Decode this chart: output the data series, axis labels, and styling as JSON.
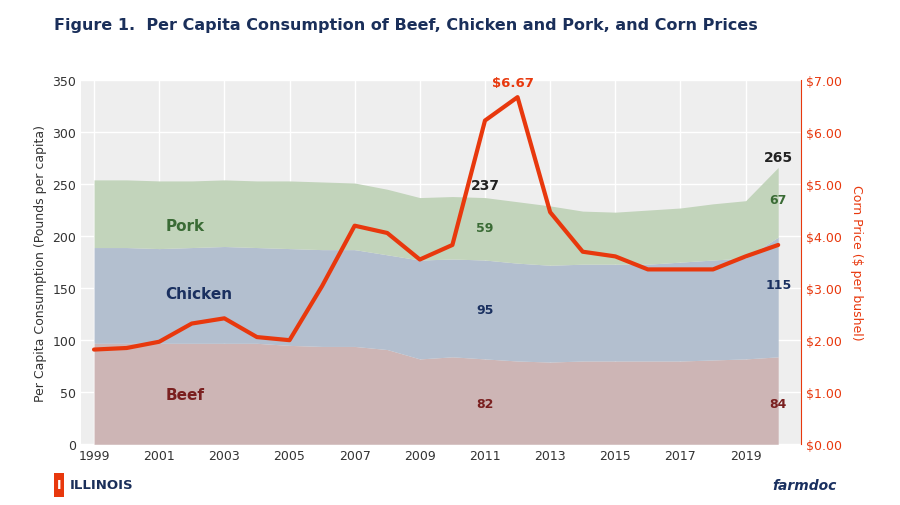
{
  "title": "Figure 1.  Per Capita Consumption of Beef, Chicken and Pork, and Corn Prices",
  "years": [
    1999,
    2000,
    2001,
    2002,
    2003,
    2004,
    2005,
    2006,
    2007,
    2008,
    2009,
    2010,
    2011,
    2012,
    2013,
    2014,
    2015,
    2016,
    2017,
    2018,
    2019,
    2020
  ],
  "beef": [
    97,
    97,
    97,
    97,
    97,
    97,
    95,
    94,
    94,
    91,
    82,
    84,
    82,
    80,
    79,
    80,
    80,
    80,
    80,
    81,
    82,
    84
  ],
  "chicken": [
    92,
    92,
    91,
    92,
    93,
    92,
    93,
    93,
    93,
    91,
    95,
    94,
    95,
    94,
    93,
    93,
    93,
    93,
    95,
    96,
    97,
    115
  ],
  "pork": [
    65,
    65,
    65,
    64,
    64,
    64,
    65,
    65,
    64,
    63,
    60,
    60,
    60,
    59,
    57,
    51,
    50,
    52,
    52,
    54,
    55,
    67
  ],
  "corn_price": [
    1.82,
    1.85,
    1.97,
    2.32,
    2.42,
    2.06,
    2.0,
    3.04,
    4.2,
    4.06,
    3.55,
    3.83,
    6.22,
    6.67,
    4.46,
    3.7,
    3.61,
    3.36,
    3.36,
    3.36,
    3.61,
    3.83
  ],
  "beef_color": "#cdb5b5",
  "chicken_color": "#b3bfcf",
  "pork_color": "#c2d4bb",
  "corn_color": "#e8380d",
  "ylabel_left": "Per Capita Consumption (Pounds per capita)",
  "ylabel_right": "Corn Price ($ per bushel)",
  "ylim_left": [
    0,
    350
  ],
  "ylim_right": [
    0,
    7.0
  ],
  "background_color": "#ffffff",
  "plot_bg_color": "#eeeeee",
  "grid_color": "#ffffff",
  "title_color": "#1a2f5a",
  "beef_label_color": "#7a2020",
  "chicken_label_color": "#1a3060",
  "pork_label_color": "#3a6b35",
  "footer_left": "ILLINOIS",
  "footer_right": "farmdoc",
  "xticks": [
    1999,
    2001,
    2003,
    2005,
    2007,
    2009,
    2011,
    2013,
    2015,
    2017,
    2019
  ]
}
